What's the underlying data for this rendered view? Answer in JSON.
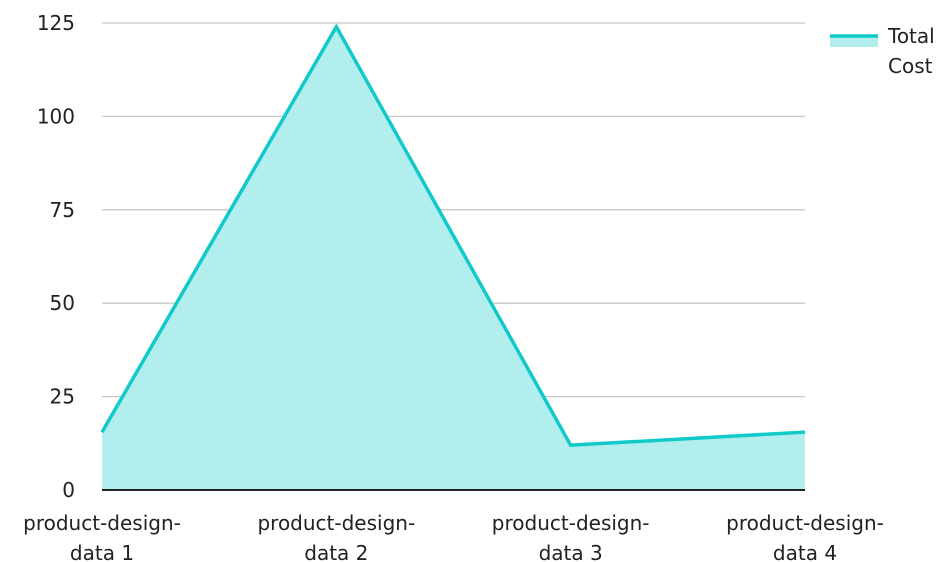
{
  "chart_data": {
    "type": "area",
    "categories": [
      "product-design-data 1",
      "product-design-data 2",
      "product-design-data 3",
      "product-design-data 4"
    ],
    "category_lines": [
      [
        "product-design-",
        "data 1"
      ],
      [
        "product-design-",
        "data 2"
      ],
      [
        "product-design-",
        "data 3"
      ],
      [
        "product-design-",
        "data 4"
      ]
    ],
    "series": [
      {
        "name": "Total Cost",
        "values": [
          15.5,
          124,
          12,
          15.5
        ]
      }
    ],
    "legend_lines": [
      "Total",
      "Cost"
    ],
    "title": "",
    "xlabel": "",
    "ylabel": "",
    "ylim": [
      0,
      125
    ],
    "yticks": [
      0,
      25,
      50,
      75,
      100,
      125
    ],
    "grid": true,
    "legend_position": "top-right",
    "colors": {
      "line": "#12C9C9",
      "fill": "#B2EEEE",
      "grid": "#C8C8C8",
      "axis": "#222222"
    }
  }
}
